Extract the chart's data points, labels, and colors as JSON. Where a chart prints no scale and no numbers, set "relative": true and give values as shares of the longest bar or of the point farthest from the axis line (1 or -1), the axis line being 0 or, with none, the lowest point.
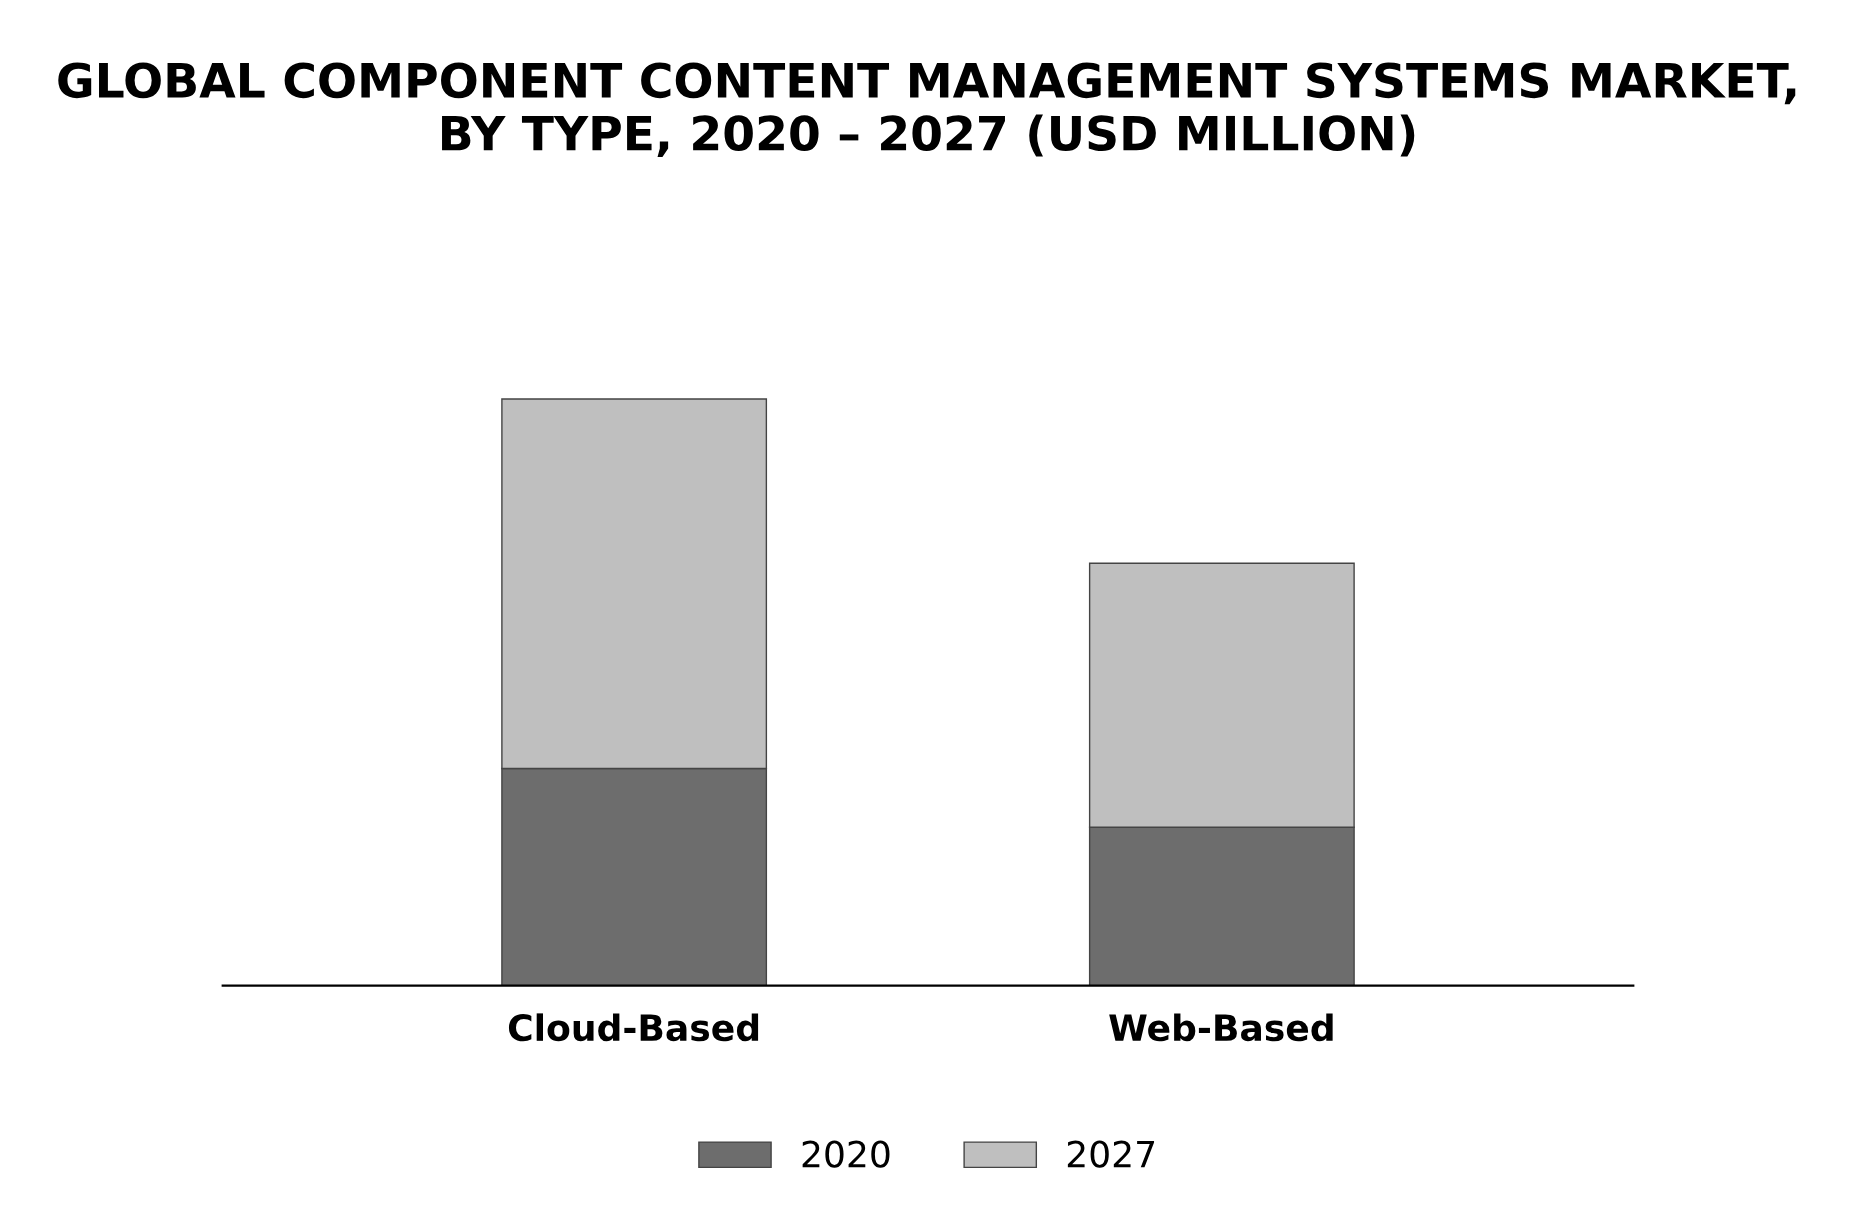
{
  "chart_data": {
    "type": "bar",
    "title": "GLOBAL COMPONENT CONTENT MANAGEMENT SYSTEMS MARKET,\nBY TYPE, 2020 – 2027 (USD MILLION)",
    "categories": [
      "Cloud-Based",
      "Web-Based"
    ],
    "stacked": true,
    "relative": true,
    "legend": "bottom",
    "grid": false,
    "series": [
      {
        "name": "2020",
        "color": "#6d6d6d",
        "values": [
          0.37,
          0.27
        ]
      },
      {
        "name": "2027",
        "color": "#bfbfbf",
        "values": [
          0.63,
          0.45
        ]
      }
    ]
  }
}
